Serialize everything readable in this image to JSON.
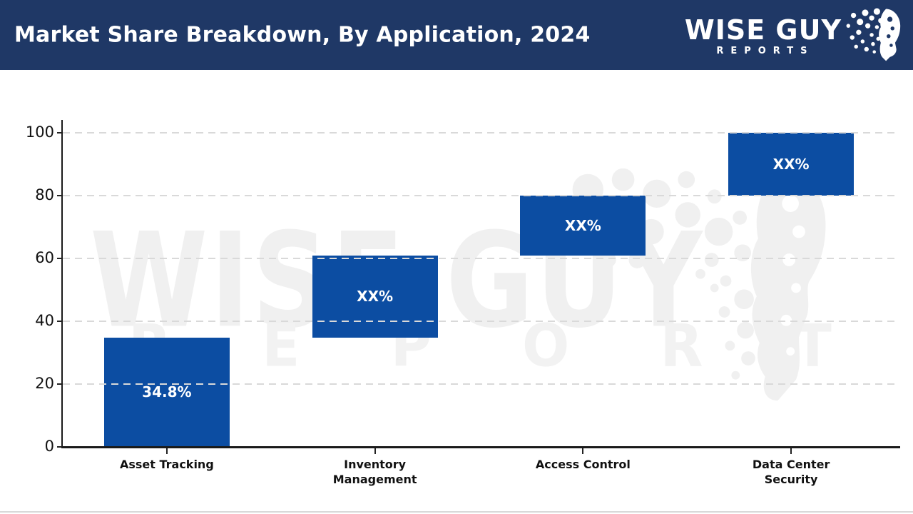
{
  "header": {
    "title": "Market Share Breakdown, By Application, 2024",
    "bg_color": "#1f3866",
    "logo": {
      "line1": "WISE GUY",
      "line2": "REPORTS",
      "head_icon": "dotted-head-profile"
    }
  },
  "watermark": {
    "line1": "WISE GUY",
    "line2": "R E P O R T S",
    "head_icon": "dotted-head-profile"
  },
  "chart_data": {
    "type": "bar",
    "subtype": "waterfall",
    "title": "Market Share Breakdown, By Application, 2024",
    "categories": [
      "Asset Tracking",
      "Inventory Management",
      "Access Control",
      "Data Center Security"
    ],
    "categories_lines": [
      [
        "Asset Tracking"
      ],
      [
        "Inventory",
        "Management"
      ],
      [
        "Access Control"
      ],
      [
        "Data Center",
        "Security"
      ]
    ],
    "segments": [
      {
        "category": "Asset Tracking",
        "start": 0,
        "end": 34.8,
        "label": "34.8%"
      },
      {
        "category": "Inventory Management",
        "start": 34.8,
        "end": 61,
        "label": "XX%"
      },
      {
        "category": "Access Control",
        "start": 61,
        "end": 80,
        "label": "XX%"
      },
      {
        "category": "Data Center Security",
        "start": 80,
        "end": 100,
        "label": "XX%"
      }
    ],
    "xlabel": "",
    "ylabel": "",
    "ylim": [
      0,
      100
    ],
    "yticks": [
      0,
      20,
      40,
      60,
      80,
      100
    ],
    "grid": "horizontal-dashed",
    "legend": "none",
    "bar_color": "#0c4da2",
    "bar_label_color": "#ffffff",
    "axis_color": "#1a1a1a",
    "gridline_color": "#dcdcdc"
  }
}
